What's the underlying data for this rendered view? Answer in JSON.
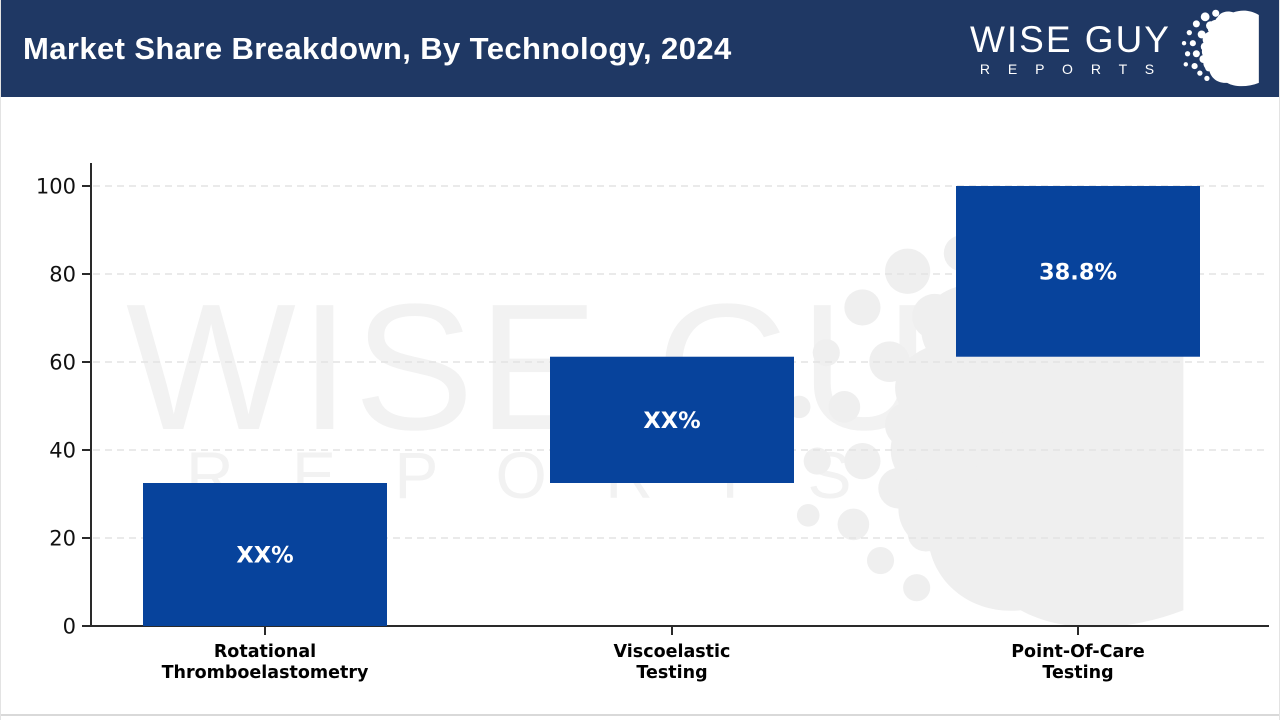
{
  "header": {
    "title": "Market Share Breakdown, By Technology, 2024",
    "bg_color": "#1f3864",
    "logo": {
      "line1": "WISE GUY",
      "line2": "R E P O R T S"
    }
  },
  "watermark": {
    "line1": "WISE GUY",
    "line2": "R E P O R T S"
  },
  "chart_data": {
    "type": "bar",
    "subtype": "waterfall",
    "title": "Market Share Breakdown, By Technology, 2024",
    "categories": [
      "Rotational Thromboelastometry",
      "Viscoelastic Testing",
      "Point-Of-Care Testing"
    ],
    "category_lines": [
      [
        "Rotational",
        "Thromboelastometry"
      ],
      [
        "Viscoelastic",
        "Testing"
      ],
      [
        "Point-Of-Care",
        "Testing"
      ]
    ],
    "segments": [
      {
        "category": "Rotational Thromboelastometry",
        "label": "XX%",
        "start": 0,
        "end": 32.5
      },
      {
        "category": "Viscoelastic Testing",
        "label": "XX%",
        "start": 32.5,
        "end": 61.2
      },
      {
        "category": "Point-Of-Care Testing",
        "label": "38.8%",
        "start": 61.2,
        "end": 100
      }
    ],
    "bar_labels": [
      "XX%",
      "XX%",
      "38.8%"
    ],
    "ylim": [
      0,
      100
    ],
    "yticks": [
      0,
      20,
      40,
      60,
      80,
      100
    ],
    "xlabel": "",
    "ylabel": "",
    "legend": false,
    "grid": "horizontal-dashed",
    "bar_color": "#07439c",
    "bar_label_color": "#ffffff",
    "grid_color": "#e3e3e3",
    "axis_color": "#2a2a2a"
  }
}
